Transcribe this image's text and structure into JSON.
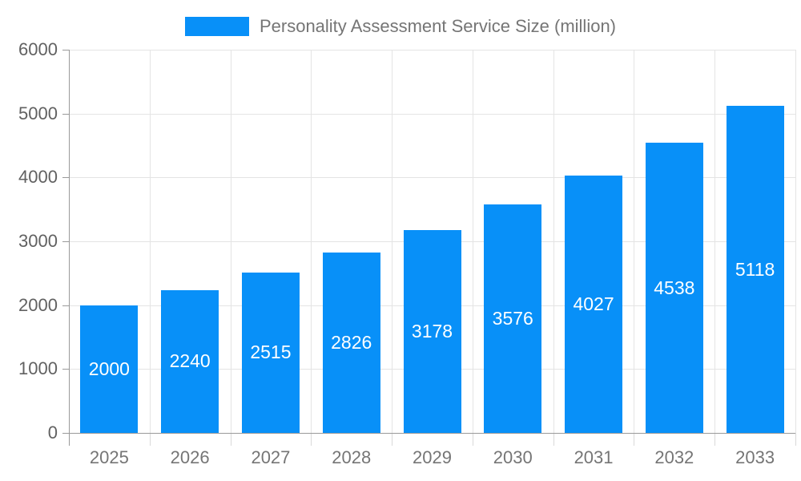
{
  "legend": {
    "label": "Personality Assessment Service Size (million)"
  },
  "colors": {
    "bar": "#0890f8",
    "grid": "#e4e4e4",
    "axis": "#9a9a9a",
    "minor_tick": "#d9d9d9",
    "axis_text": "#616161",
    "x_axis_text": "#757575",
    "legend_text": "#757575",
    "bar_label": "#ffffff",
    "background": "#ffffff"
  },
  "chart_data": {
    "type": "bar",
    "title": "Personality Assessment Service Size (million)",
    "categories": [
      "2025",
      "2026",
      "2027",
      "2028",
      "2029",
      "2030",
      "2031",
      "2032",
      "2033"
    ],
    "values": [
      2000,
      2240,
      2515,
      2826,
      3178,
      3576,
      4027,
      4538,
      5118
    ],
    "xlabel": "",
    "ylabel": "",
    "ylim": [
      0,
      6000
    ],
    "ytick_step": 1000,
    "grid": true,
    "legend_position": "top-center",
    "value_labels": "inside-center"
  }
}
